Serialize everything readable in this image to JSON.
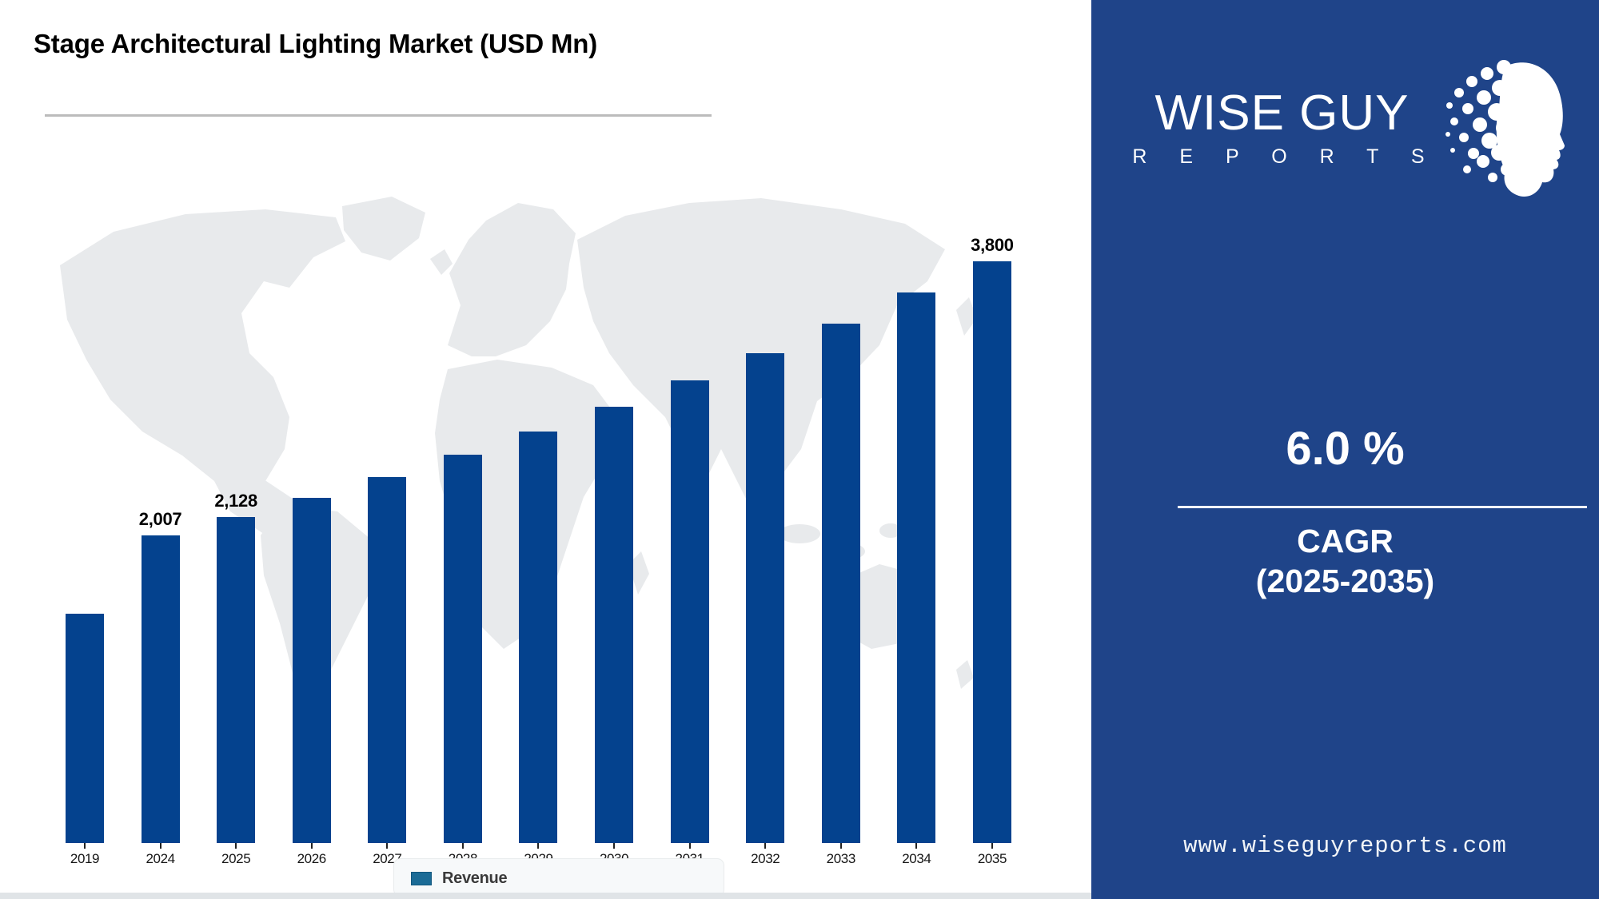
{
  "header": {
    "title": "Stage Architectural Lighting Market (USD Mn)"
  },
  "chart_data": {
    "type": "bar",
    "title": "Stage Architectural Lighting Market (USD Mn)",
    "categories": [
      "2019",
      "2024",
      "2025",
      "2026",
      "2027",
      "2028",
      "2029",
      "2030",
      "2031",
      "2032",
      "2033",
      "2034",
      "2035"
    ],
    "series": [
      {
        "name": "Revenue",
        "values": [
          1500,
          2007,
          2128,
          2256,
          2391,
          2534,
          2687,
          2848,
          3019,
          3200,
          3392,
          3596,
          3800
        ]
      }
    ],
    "data_labels": {
      "2024": "2,007",
      "2025": "2,128",
      "2035": "3,800"
    },
    "xlabel": "",
    "ylabel": "",
    "ylim": [
      0,
      4200
    ],
    "grid": false,
    "y_axis_visible": false,
    "bar_color": "#04428e",
    "legend": {
      "label": "Revenue",
      "position": "bottom-center",
      "swatch_color": "#1b6b96"
    }
  },
  "sidebar": {
    "background": "#1f4489",
    "logo": {
      "line1": "WISE GUY",
      "line2": "R E P O R T S"
    },
    "cagr_value": "6.0 %",
    "cagr_label": "CAGR",
    "cagr_range": "(2025-2035)",
    "website": "www.wiseguyreports.com"
  }
}
